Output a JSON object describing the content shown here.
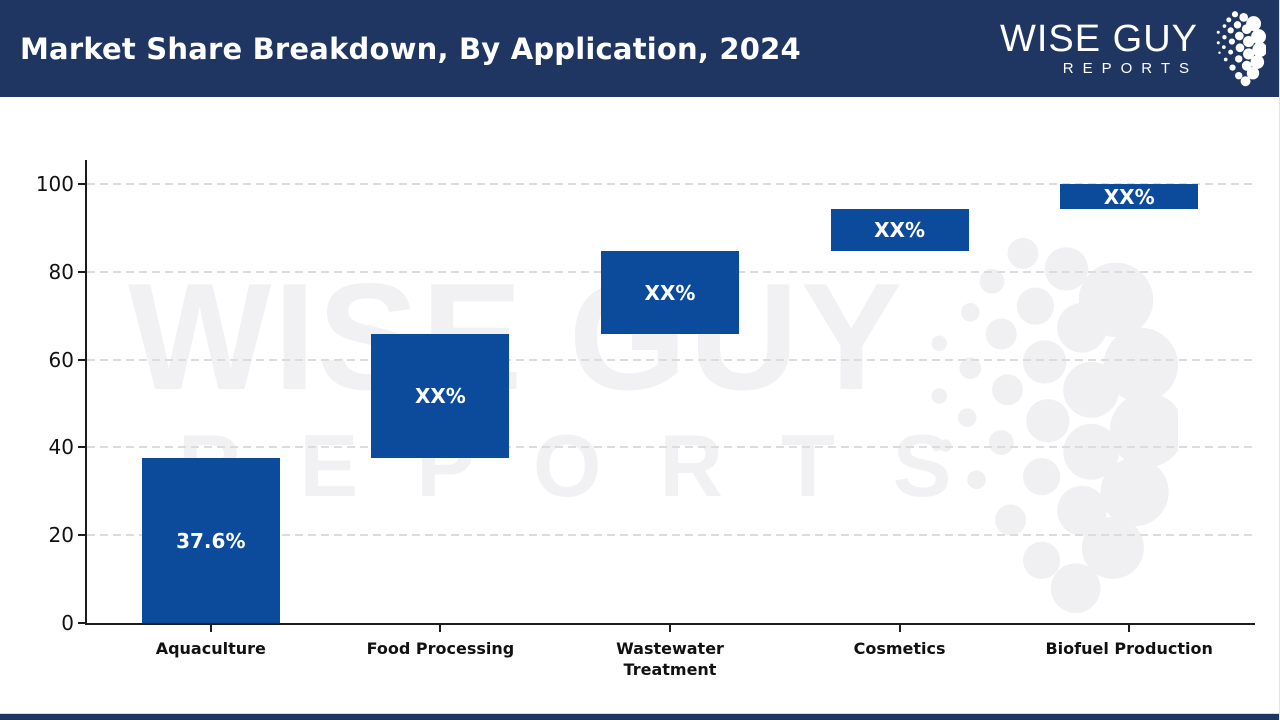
{
  "header": {
    "title": "Market Share Breakdown, By Application, 2024",
    "bg_color": "#1f3562",
    "logo": {
      "line1": "WISE GUY",
      "line2": "REPORTS"
    }
  },
  "watermark": {
    "line1": "WISE GUY",
    "line2": "REPORTS"
  },
  "footer": {
    "bg_color": "#1f3562"
  },
  "chart_data": {
    "type": "bar",
    "subtype": "waterfall",
    "title": "Market Share Breakdown, By Application, 2024",
    "xlabel": "",
    "ylabel": "",
    "categories": [
      "Aquaculture",
      "Food Processing",
      "Wastewater\nTreatment",
      "Cosmetics",
      "Biofuel Production"
    ],
    "segments": [
      {
        "category": "Aquaculture",
        "start": 0,
        "end": 37.6,
        "label": "37.6%"
      },
      {
        "category": "Food Processing",
        "start": 37.6,
        "end": 65.8,
        "label": "XX%"
      },
      {
        "category": "Wastewater Treatment",
        "start": 65.8,
        "end": 84.7,
        "label": "XX%"
      },
      {
        "category": "Cosmetics",
        "start": 84.7,
        "end": 94.3,
        "label": "XX%"
      },
      {
        "category": "Biofuel Production",
        "start": 94.3,
        "end": 100,
        "label": "XX%"
      }
    ],
    "y_ticks": [
      0,
      20,
      40,
      60,
      80,
      100
    ],
    "ylim": [
      0,
      105.5
    ],
    "grid": true,
    "gridline_style": "dashed",
    "bar_color": "#0c4a9c",
    "bar_label_color": "#ffffff",
    "legend": "none"
  }
}
